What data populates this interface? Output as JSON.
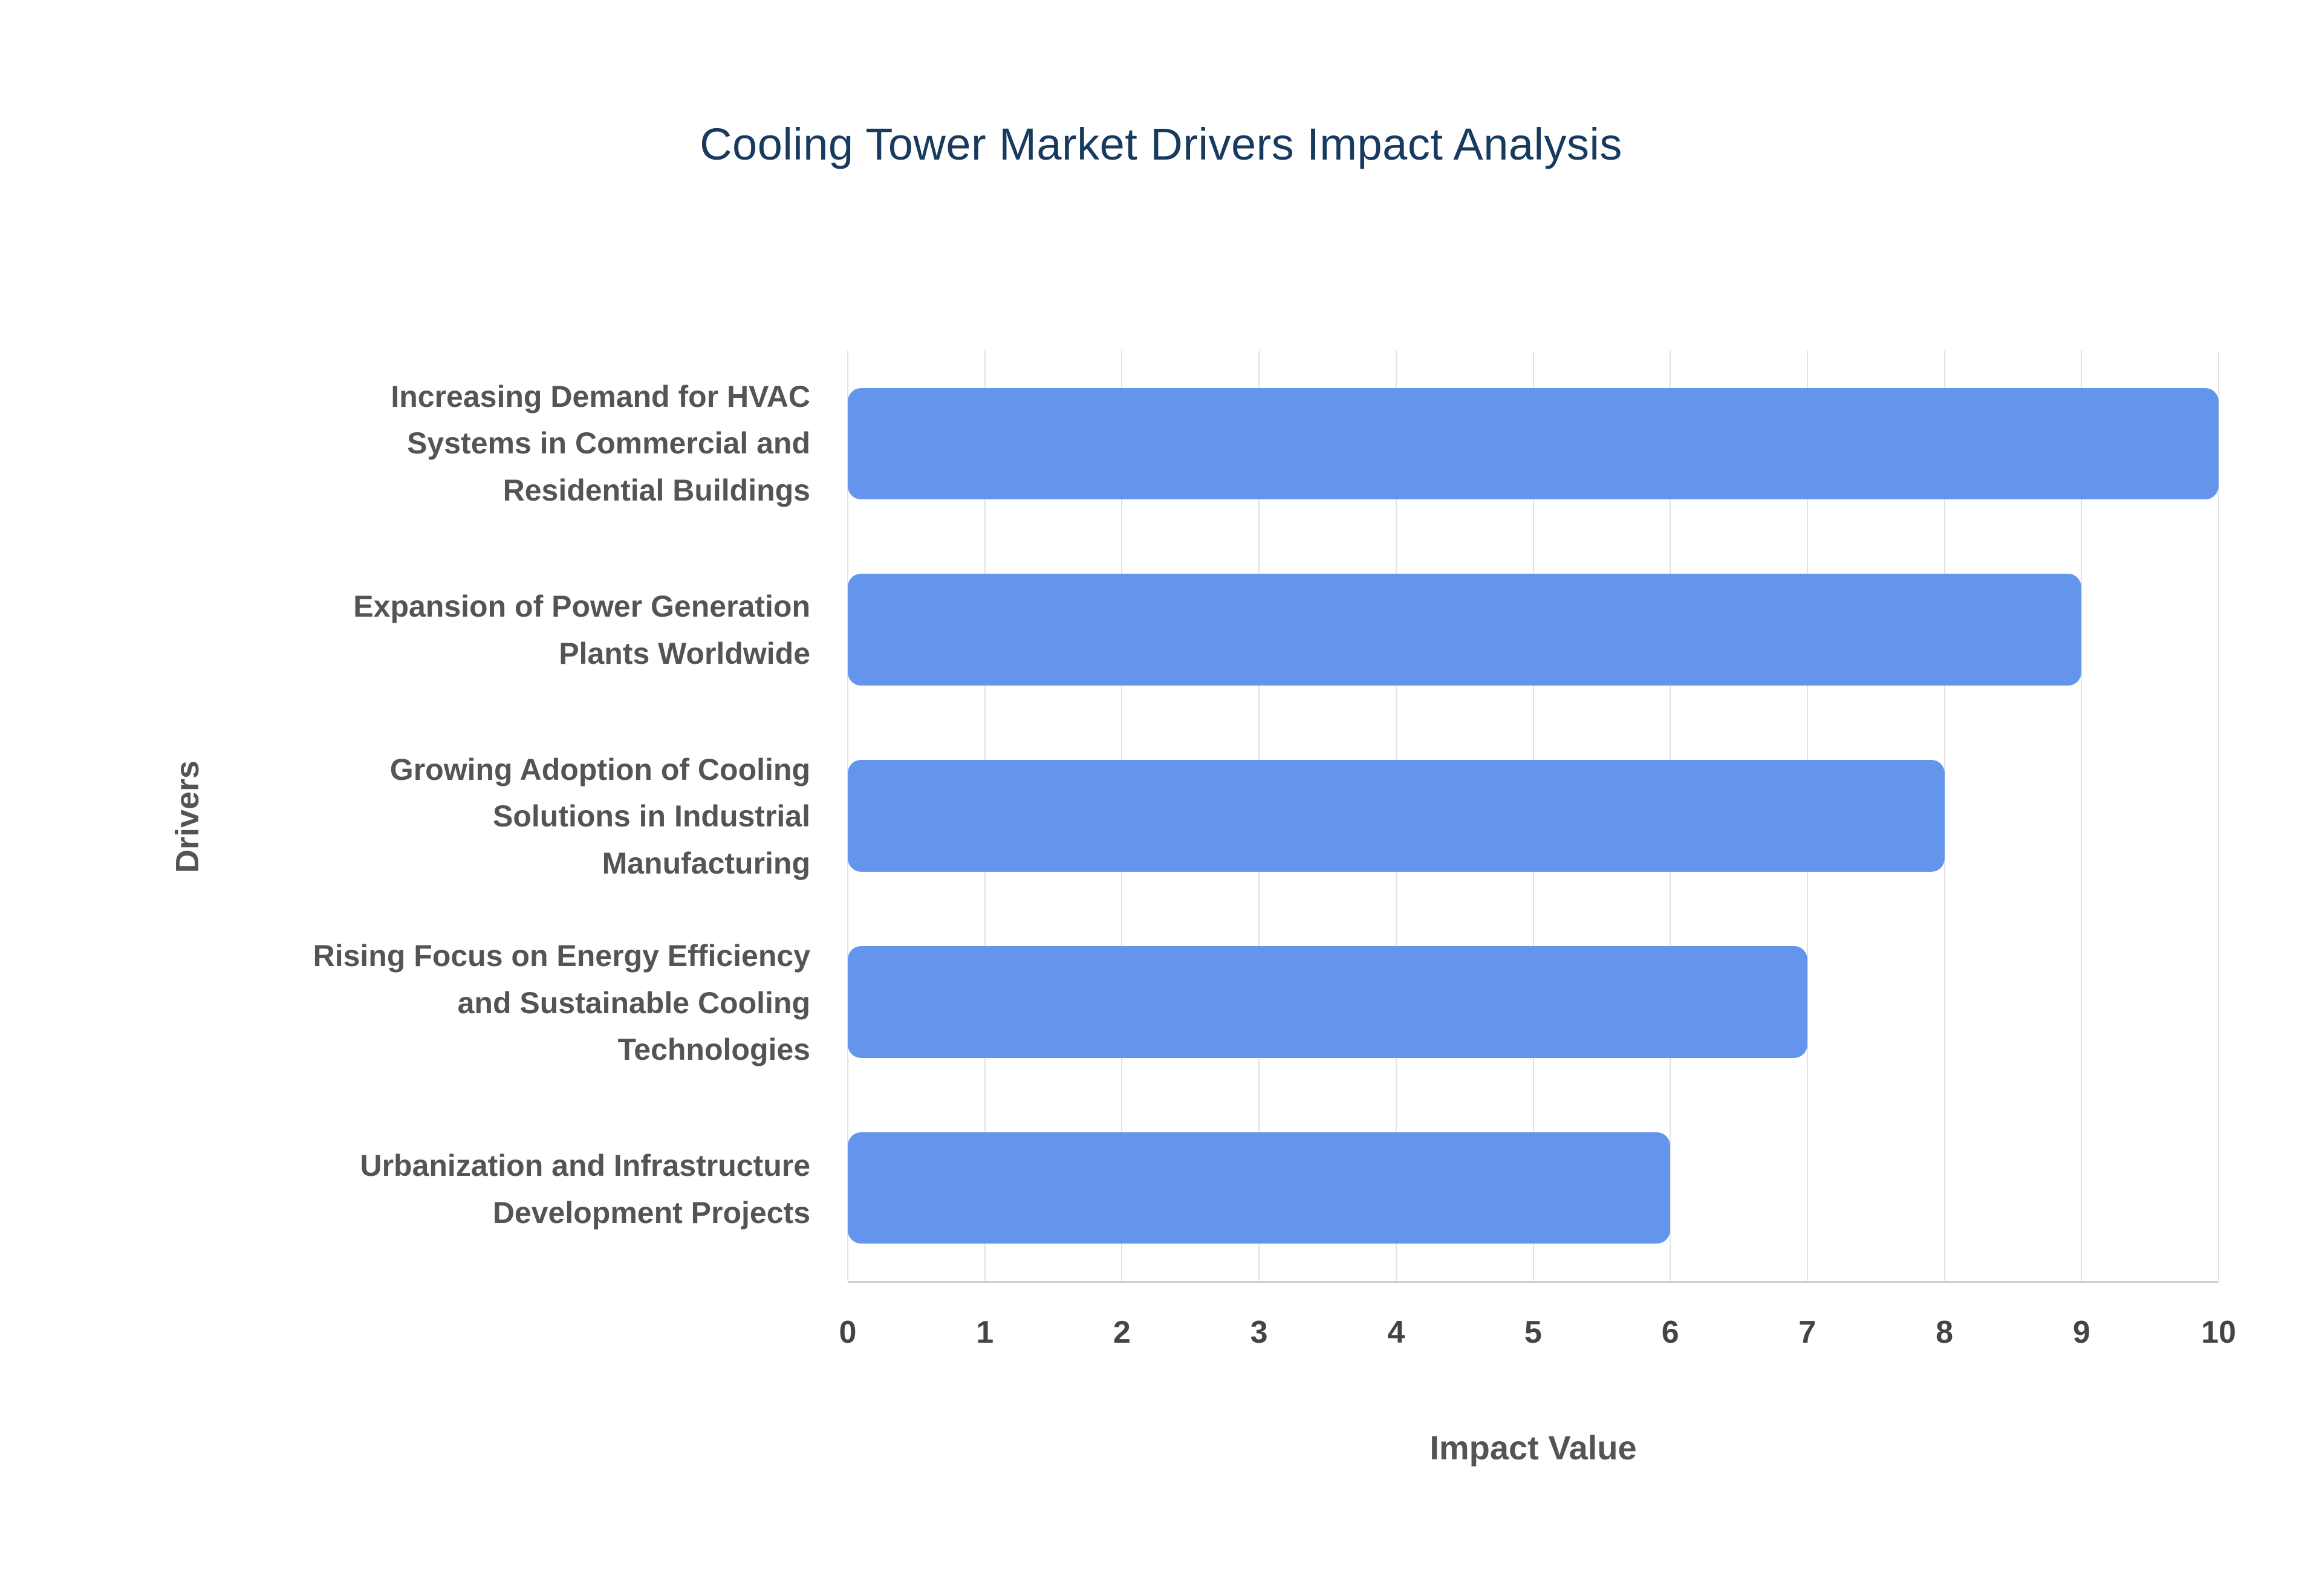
{
  "chart_data": {
    "type": "bar",
    "orientation": "horizontal",
    "title": "Cooling Tower Market Drivers Impact Analysis",
    "xlabel": "Impact Value",
    "ylabel": "Drivers",
    "categories": [
      "Increasing Demand for HVAC Systems in Commercial and Residential Buildings",
      "Expansion of Power Generation Plants Worldwide",
      "Growing Adoption of Cooling Solutions in Industrial Manufacturing",
      "Rising Focus on Energy Efficiency and Sustainable Cooling Technologies",
      "Urbanization and Infrastructure Development Projects"
    ],
    "values": [
      10,
      9,
      8,
      7,
      6
    ],
    "xlim": [
      0,
      10
    ],
    "xticks": [
      0,
      1,
      2,
      3,
      4,
      5,
      6,
      7,
      8,
      9,
      10
    ],
    "grid": true,
    "legend": "none",
    "colors": {
      "bar": "#6495ED",
      "title": "#173A5E",
      "axis_label": "#545454",
      "tick": "#444444",
      "gridline": "#E2E2E2",
      "axisline": "#CFCFCF",
      "background": "#FFFFFF"
    }
  }
}
